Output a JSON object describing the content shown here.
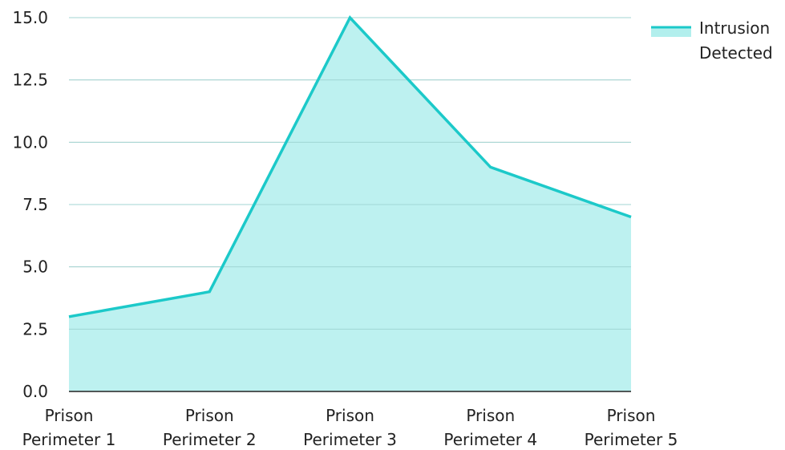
{
  "chart_data": {
    "type": "area",
    "title": "",
    "xlabel": "",
    "ylabel": "",
    "categories": [
      [
        "Prison",
        "Perimeter 1"
      ],
      [
        "Prison",
        "Perimeter 2"
      ],
      [
        "Prison",
        "Perimeter 3"
      ],
      [
        "Prison",
        "Perimeter 4"
      ],
      [
        "Prison",
        "Perimeter 5"
      ]
    ],
    "series": [
      {
        "name_lines": [
          "Intrusion",
          "Detected"
        ],
        "values": [
          3,
          4,
          15,
          9,
          7
        ],
        "line_color": "#1cc9c9",
        "fill_color": "#b2efed"
      }
    ],
    "ylim": [
      0,
      15
    ],
    "yticks": [
      "0.0",
      "2.5",
      "5.0",
      "7.5",
      "10.0",
      "12.5",
      "15.0"
    ],
    "ytick_values": [
      0,
      2.5,
      5,
      7.5,
      10,
      12.5,
      15
    ],
    "grid": true,
    "legend_position": "top-right"
  }
}
